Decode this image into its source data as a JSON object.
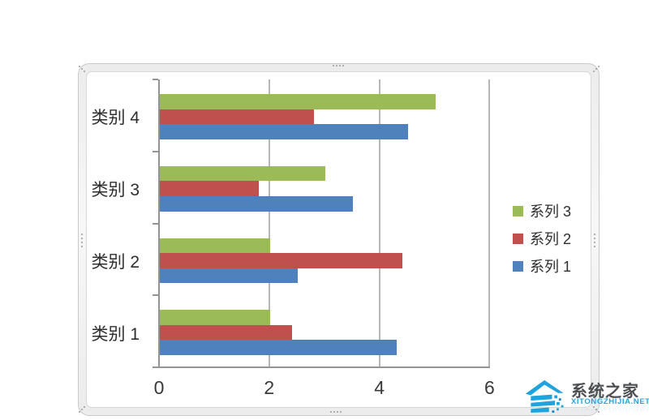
{
  "chart_data": {
    "type": "bar",
    "orientation": "horizontal",
    "title": "",
    "categories": [
      "类别 1",
      "类别 2",
      "类别 3",
      "类别 4"
    ],
    "series": [
      {
        "name": "系列 1",
        "color": "#4F81BD",
        "values": [
          4.3,
          2.5,
          3.5,
          4.5
        ]
      },
      {
        "name": "系列 2",
        "color": "#C0504D",
        "values": [
          2.4,
          4.4,
          1.8,
          2.8
        ]
      },
      {
        "name": "系列 3",
        "color": "#9BBB59",
        "values": [
          2.0,
          2.0,
          3.0,
          5.0
        ]
      }
    ],
    "x_axis": {
      "min": 0,
      "max": 6,
      "major_unit": 2,
      "ticks": [
        "0",
        "2",
        "4",
        "6"
      ]
    },
    "grid": true,
    "legend": {
      "position": "right",
      "entries": [
        "系列 3",
        "系列 2",
        "系列 1"
      ]
    }
  },
  "colors": {
    "axis": "#949494",
    "gridline": "#b6b6b6",
    "text": "#2e2e2e",
    "frame_border": "#c9c9c9"
  },
  "watermark": {
    "title": "系统之家",
    "url": "XITONGZHIJIA.NET",
    "brand_color": "#27a5dc",
    "title_color": "#4d4f52"
  }
}
